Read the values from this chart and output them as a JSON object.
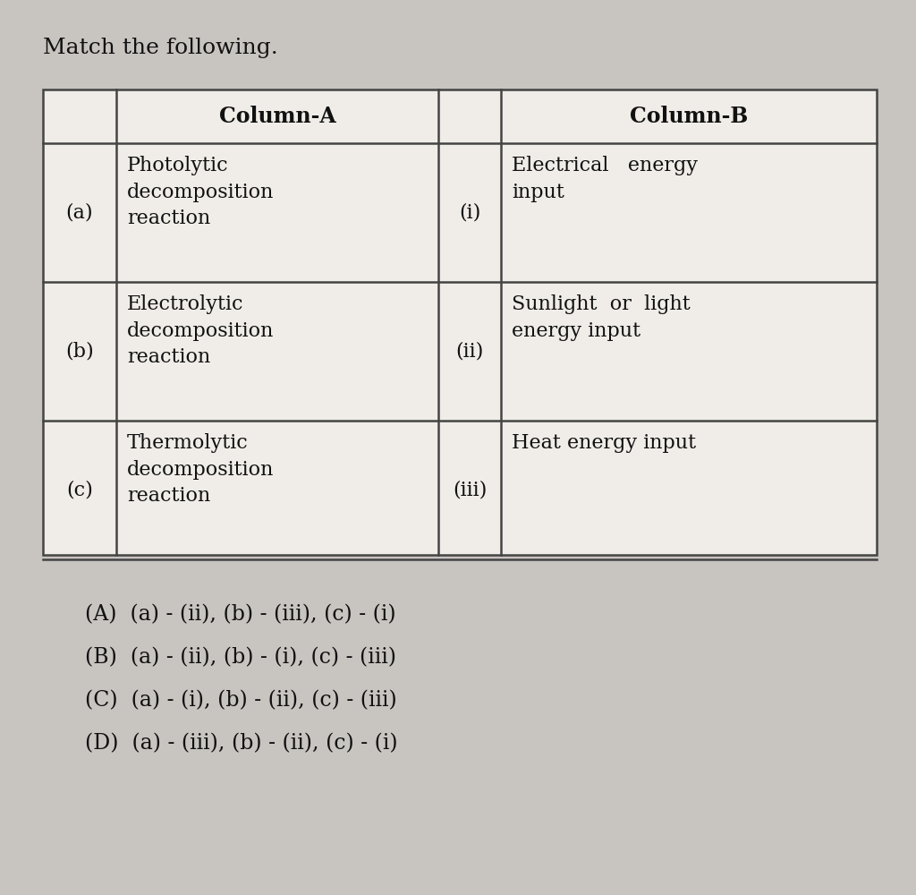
{
  "title": "Match the following.",
  "background_color": "#c8c4c0",
  "table_bg": "#f0ede8",
  "border_color": "#444444",
  "text_color": "#111111",
  "col_a_header": "Column-A",
  "col_b_header": "Column-B",
  "rows": [
    {
      "left_label": "(a)",
      "left_text": "Photolytic\ndecomposition\nreaction",
      "right_label": "(i)",
      "right_text": "Electrical   energy\ninput"
    },
    {
      "left_label": "(b)",
      "left_text": "Electrolytic\ndecomposition\nreaction",
      "right_label": "(ii)",
      "right_text": "Sunlight  or  light\nenergy input"
    },
    {
      "left_label": "(c)",
      "left_text": "Thermolytic\ndecomposition\nreaction",
      "right_label": "(iii)",
      "right_text": "Heat energy input"
    }
  ],
  "options": [
    "(A)  (a) - (ii), (b) - (iii), (c) - (i)",
    "(B)  (a) - (ii), (b) - (i), (c) - (iii)",
    "(C)  (a) - (i), (b) - (ii), (c) - (iii)",
    "(D)  (a) - (iii), (b) - (ii), (c) - (i)"
  ],
  "title_fontsize": 18,
  "header_fontsize": 17,
  "cell_fontsize": 16,
  "options_fontsize": 17,
  "fig_width": 10.24,
  "fig_height": 10.0,
  "dpi": 100
}
